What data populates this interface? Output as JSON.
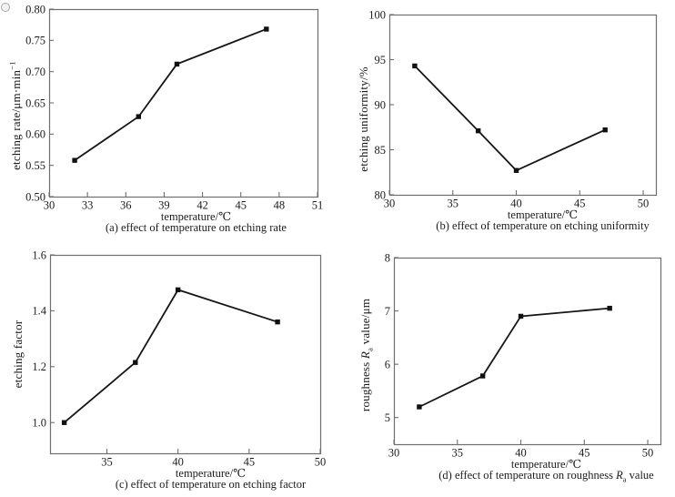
{
  "figure": {
    "description_labels": {
      "x_axis_shared": "temperature/℃"
    }
  },
  "colors": {
    "background": "#ffffff",
    "axis_box": "#6e6e6e",
    "series_line": "#161616",
    "marker_fill": "#111111",
    "text": "#1c1c1c"
  },
  "chart_data": [
    {
      "panel": "a",
      "type": "line",
      "marker": "square",
      "grid": false,
      "legend": null,
      "x": [
        32,
        37,
        40,
        47
      ],
      "y": [
        0.558,
        0.628,
        0.712,
        0.768
      ],
      "xlim": [
        30,
        51
      ],
      "ylim": [
        0.5,
        0.8
      ],
      "xticks": [
        30,
        33,
        36,
        39,
        42,
        45,
        48,
        51
      ],
      "xtick_labels": [
        "30",
        "33",
        "36",
        "39",
        "42",
        "45",
        "48",
        "51"
      ],
      "yticks": [
        0.5,
        0.55,
        0.6,
        0.65,
        0.7,
        0.75,
        0.8
      ],
      "ytick_labels": [
        "0.50",
        "0.55",
        "0.60",
        "0.65",
        "0.70",
        "0.75",
        "0.80"
      ],
      "xlabel": "temperature/℃",
      "ylabel": [
        {
          "t": "etching rate/μm·min"
        },
        {
          "t": "−1",
          "s": "sup"
        }
      ],
      "caption": "(a) effect of temperature on etching rate"
    },
    {
      "panel": "b",
      "type": "line",
      "marker": "square",
      "grid": false,
      "legend": null,
      "x": [
        32,
        37,
        40,
        47
      ],
      "y": [
        94.3,
        87.1,
        82.7,
        87.2
      ],
      "xlim": [
        30,
        51
      ],
      "ylim": [
        80,
        100
      ],
      "xticks": [
        30,
        35,
        40,
        45,
        50
      ],
      "xtick_labels": [
        "30",
        "35",
        "40",
        "45",
        "50"
      ],
      "yticks": [
        80,
        85,
        90,
        95,
        100
      ],
      "ytick_labels": [
        "80",
        "85",
        "90",
        "95",
        "100"
      ],
      "xlabel": "temperature/℃",
      "ylabel": "etching uniformity/%",
      "caption": "(b) effect of temperature on etching uniformity"
    },
    {
      "panel": "c",
      "type": "line",
      "marker": "square",
      "grid": false,
      "legend": null,
      "x": [
        32,
        37,
        40,
        47
      ],
      "y": [
        1.0,
        1.215,
        1.475,
        1.36
      ],
      "xlim": [
        31,
        50
      ],
      "ylim": [
        0.89,
        1.6
      ],
      "xticks": [
        35,
        40,
        45,
        50
      ],
      "xtick_labels": [
        "35",
        "40",
        "45",
        "50"
      ],
      "yticks": [
        1.0,
        1.2,
        1.4,
        1.6
      ],
      "ytick_labels": [
        "1.0",
        "1.2",
        "1.4",
        "1.6"
      ],
      "xlabel": "temperature/℃",
      "ylabel": "etching factor",
      "caption": "(c) effect of temperature on etching factor"
    },
    {
      "panel": "d",
      "type": "line",
      "marker": "square",
      "grid": false,
      "legend": null,
      "x": [
        32,
        37,
        40,
        47
      ],
      "y": [
        5.2,
        5.78,
        6.9,
        7.05
      ],
      "xlim": [
        30,
        51
      ],
      "ylim": [
        4.5,
        8
      ],
      "xticks": [
        30,
        35,
        40,
        45,
        50
      ],
      "xtick_labels": [
        "30",
        "35",
        "40",
        "45",
        "50"
      ],
      "yticks": [
        5,
        6,
        7,
        8
      ],
      "ytick_labels": [
        "5",
        "6",
        "7",
        "8"
      ],
      "xlabel": "temperature/℃",
      "ylabel": [
        {
          "t": "roughness "
        },
        {
          "t": "R",
          "s": "i"
        },
        {
          "t": "a",
          "s": "sub"
        },
        {
          "t": " value/μm"
        }
      ],
      "caption": [
        {
          "t": "(d) effect of temperature on roughness "
        },
        {
          "t": "R",
          "s": "i"
        },
        {
          "t": "a",
          "s": "sub"
        },
        {
          "t": " value"
        }
      ]
    }
  ]
}
